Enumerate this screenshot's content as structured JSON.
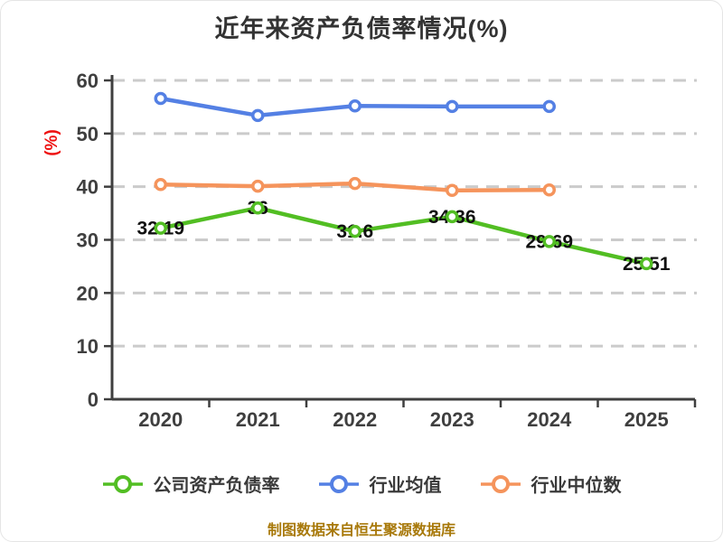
{
  "footer_note": "制图数据来自恒生聚源数据库",
  "colors": {
    "background": "#ffffff",
    "title_text": "#333333",
    "axis": "#3f3f3f",
    "tick_label": "#3f3f3f",
    "gridline": "#cbcbcb",
    "data_label": "#111111",
    "y_axis_unit": "#ee1111",
    "footer_text": "#a8790a",
    "marker_fill": "#ffffff",
    "series_company_green": "#52be23",
    "series_industry_avg_blue": "#5480e4",
    "series_industry_median_orange": "#f5945c"
  },
  "chart_data": {
    "type": "line",
    "title": "近年来资产负债率情况(%)",
    "xlabel": "",
    "ylabel": "(%)",
    "ylim": [
      0,
      60
    ],
    "y_ticks": [
      0,
      10,
      20,
      30,
      40,
      50,
      60
    ],
    "grid": "horizontal-dashed",
    "legend_position": "bottom",
    "categories": [
      "2020",
      "2021",
      "2022",
      "2023",
      "2024",
      "2025"
    ],
    "series": [
      {
        "name": "公司资产负债率",
        "color": "#52be23",
        "values": [
          32.19,
          36,
          31.6,
          34.36,
          29.69,
          25.51
        ],
        "point_labels": [
          "32.19",
          "36",
          "31.6",
          "34.36",
          "29.69",
          "25.51"
        ]
      },
      {
        "name": "行业均值",
        "color": "#5480e4",
        "values": [
          56.6,
          53.4,
          55.2,
          55.1,
          55.1,
          null
        ],
        "point_labels": null
      },
      {
        "name": "行业中位数",
        "color": "#f5945c",
        "values": [
          40.4,
          40.1,
          40.6,
          39.3,
          39.4,
          null
        ],
        "point_labels": null
      }
    ]
  }
}
